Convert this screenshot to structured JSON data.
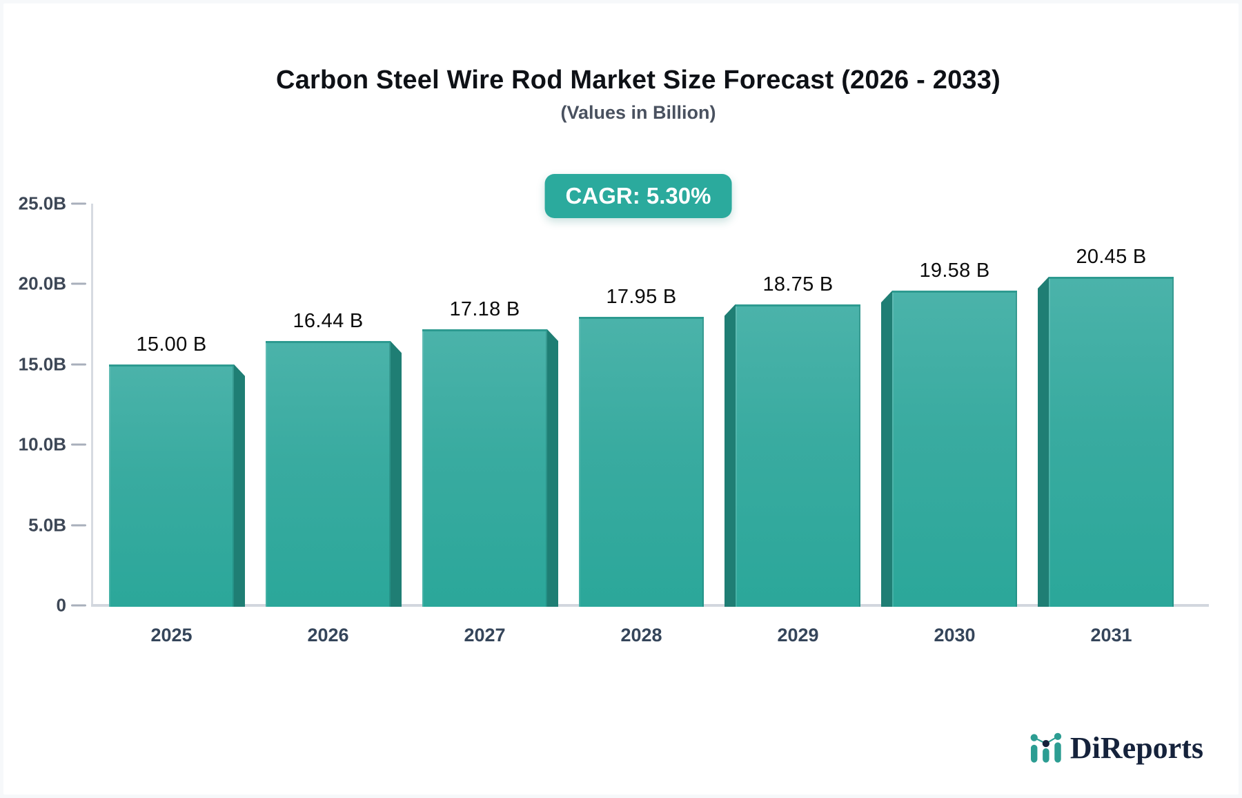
{
  "header": {
    "title": "Carbon Steel Wire Rod Market Size Forecast (2026 - 2033)",
    "subtitle": "(Values in Billion)"
  },
  "badge": {
    "label": "CAGR: 5.30%"
  },
  "chart_data": {
    "type": "bar",
    "title": "Carbon Steel Wire Rod Market Size Forecast (2026 - 2033)",
    "subtitle": "(Values in Billion)",
    "cagr_label": "CAGR: 5.30%",
    "categories": [
      "2025",
      "2026",
      "2027",
      "2028",
      "2029",
      "2030",
      "2031"
    ],
    "values": [
      15.0,
      16.44,
      17.18,
      17.95,
      18.75,
      19.58,
      20.45
    ],
    "value_labels": [
      "15.00 B",
      "16.44 B",
      "17.18 B",
      "17.95 B",
      "18.75 B",
      "19.58 B",
      "20.45 B"
    ],
    "xlabel": "",
    "ylabel": "",
    "ylim": [
      0,
      25
    ],
    "y_ticks": [
      {
        "value": 0,
        "label": "0"
      },
      {
        "value": 5,
        "label": "5.0B"
      },
      {
        "value": 10,
        "label": "10.0B"
      },
      {
        "value": 15,
        "label": "15.0B"
      },
      {
        "value": 20,
        "label": "20.0B"
      },
      {
        "value": 25,
        "label": "25.0B"
      }
    ],
    "grid": false,
    "legend": false,
    "bar_style": "pseudo-3d",
    "colors": {
      "bar_face_top": "#4bb3aa",
      "bar_face_bottom": "#2ba79a",
      "bar_side": "#1f7e74",
      "badge_background": "#2baa9d",
      "badge_text": "#ffffff",
      "axis": "#d6dae1",
      "tick": "#a8afbb",
      "value_label": "#0b0b0b",
      "axis_label": "#35455a"
    }
  },
  "logo": {
    "text": "DiReports"
  }
}
